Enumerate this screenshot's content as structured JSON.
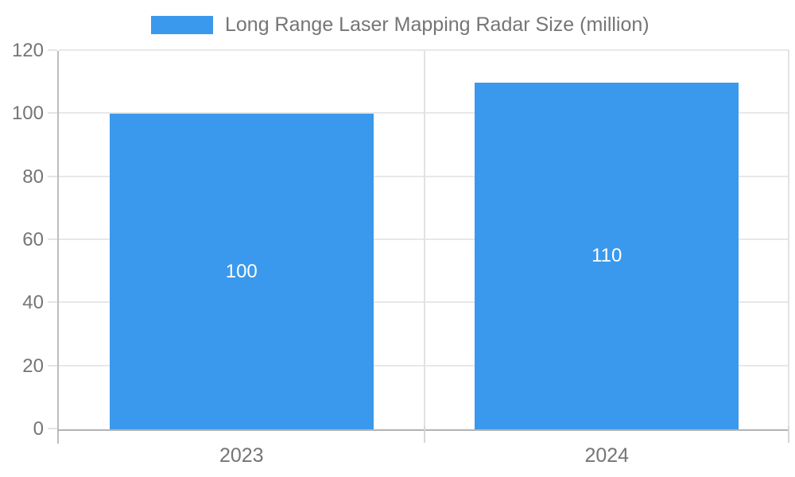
{
  "legend": {
    "position": "top",
    "label": "Long Range Laser Mapping Radar Size (million)",
    "swatch_color": "#3a99ec"
  },
  "chart_data": {
    "type": "bar",
    "title": "Long Range Laser Mapping Radar Size (million)",
    "categories": [
      "2023",
      "2024"
    ],
    "series": [
      {
        "name": "Long Range Laser Mapping Radar Size (million)",
        "values": [
          100,
          110
        ]
      }
    ],
    "data_labels": [
      "100",
      "110"
    ],
    "xlabel": "",
    "ylabel": "",
    "ylim": [
      0,
      120
    ],
    "yticks": [
      0,
      20,
      40,
      60,
      80,
      100,
      120
    ],
    "grid": true,
    "legend_position": "top",
    "bar_color": "#3a99ec",
    "value_label_color": "#ffffff",
    "axis_text_color": "#757575",
    "background_color": "#ffffff"
  },
  "colors": {
    "accent": "#3a99ec",
    "axis_text": "#757575",
    "grid_h": "#e8e8e8",
    "grid_v": "#e2e2e2",
    "x_axis_line": "#b3b3b3",
    "y_axis_line": "#bdbdbd",
    "tick": "#d6d6d6",
    "background": "#ffffff"
  }
}
